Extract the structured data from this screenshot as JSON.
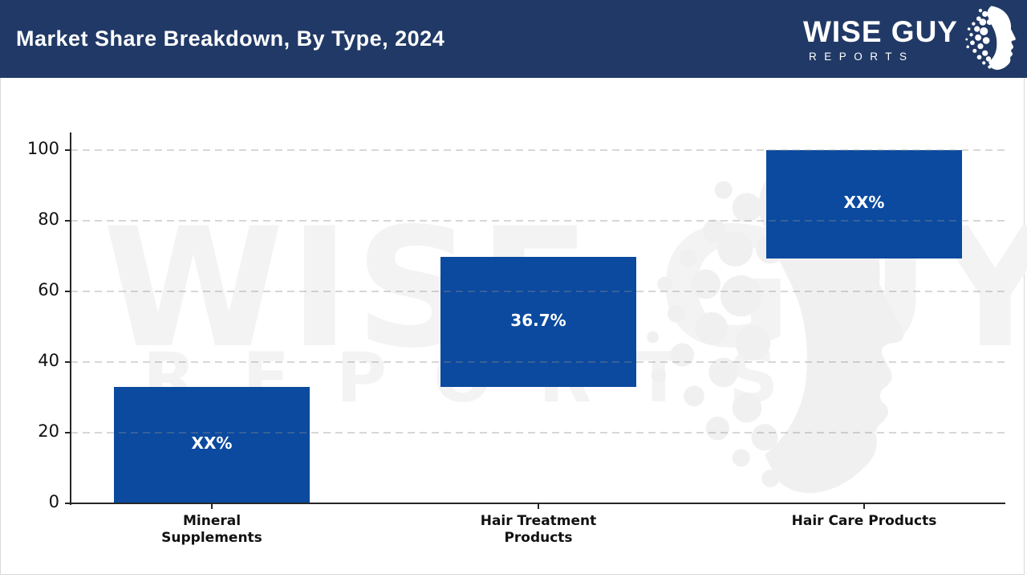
{
  "header": {
    "title": "Market Share Breakdown, By Type, 2024",
    "logo": {
      "brand_line1": "WISE GUY",
      "brand_line2": "REPORTS"
    }
  },
  "watermark": {
    "line1": "WISE GUY",
    "line2": "REPORTS"
  },
  "chart_data": {
    "type": "bar",
    "subtype": "floating_segment_bars",
    "title": "Market Share Breakdown, By Type, 2024",
    "xlabel": "",
    "ylabel": "",
    "ylim": [
      0,
      105
    ],
    "yticks": [
      0,
      20,
      40,
      60,
      80,
      100
    ],
    "grid": "horizontal-dashed",
    "legend": "none",
    "categories": [
      "Mineral Supplements",
      "Hair Treatment Products",
      "Hair Care Products"
    ],
    "category_lines": [
      [
        "Mineral",
        "Supplements"
      ],
      [
        "Hair Treatment",
        "Products"
      ],
      [
        "Hair Care Products"
      ]
    ],
    "bars": [
      {
        "category": "Mineral Supplements",
        "start": 0,
        "end": 33,
        "label": "XX%"
      },
      {
        "category": "Hair Treatment Products",
        "start": 33,
        "end": 69.7,
        "label": "36.7%",
        "value": 36.7
      },
      {
        "category": "Hair Care Products",
        "start": 69.3,
        "end": 100,
        "label": "XX%"
      }
    ],
    "bar_color": "#0B4A9F",
    "bar_label_color": "#FFFFFF"
  },
  "colors": {
    "header_bg": "#213966",
    "bar": "#0B4A9F",
    "axis": "#262626",
    "gridline": "#D9D9D9",
    "watermark": "#F3F3F3",
    "border": "#D9D9D9",
    "title_text": "#FFFFFF",
    "tick_label": "#111111"
  }
}
